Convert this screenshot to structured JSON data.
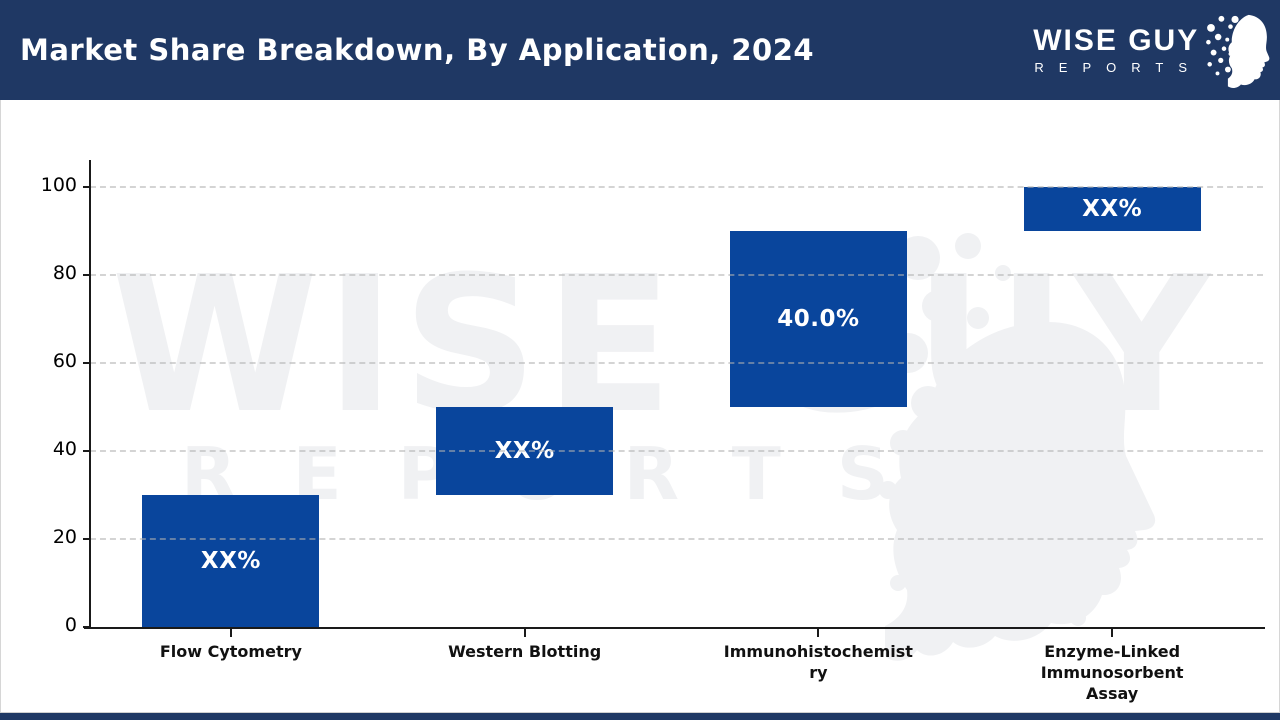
{
  "header": {
    "title": "Market Share Breakdown, By Application, 2024",
    "logo": {
      "name": "WISE GUY",
      "reports": "REPORTS"
    }
  },
  "watermark": {
    "name": "WISE GUY",
    "reports": "REPORTS"
  },
  "chart_data": {
    "type": "bar",
    "variant": "floating-waterfall",
    "title": "Market Share Breakdown, By Application, 2024",
    "xlabel": "",
    "ylabel": "",
    "categories": [
      "Flow Cytometry",
      "Western Blotting",
      "Immunohistochemistry",
      "Enzyme-Linked Immunosorbent Assay"
    ],
    "category_display_lines": [
      [
        "Flow Cytometry"
      ],
      [
        "Western Blotting"
      ],
      [
        "Immunohistochemist",
        "ry"
      ],
      [
        "Enzyme-Linked",
        "Immunosorbent",
        "Assay"
      ]
    ],
    "segments": [
      {
        "category": "Flow Cytometry",
        "start": 0,
        "end": 30,
        "label": "XX%"
      },
      {
        "category": "Western Blotting",
        "start": 30,
        "end": 50,
        "label": "XX%"
      },
      {
        "category": "Immunohistochemistry",
        "start": 50,
        "end": 90,
        "label": "40.0%"
      },
      {
        "category": "Enzyme-Linked Immunosorbent Assay",
        "start": 90,
        "end": 100,
        "label": "XX%"
      }
    ],
    "yticks": [
      0,
      20,
      40,
      60,
      80,
      100
    ],
    "ylim": [
      0,
      100
    ],
    "grid": "horizontal-dashed",
    "legend": "none",
    "bar_color": "#09459c",
    "bar_label_color": "#ffffff"
  },
  "colors": {
    "header_bg": "#1f3864",
    "footer_bg": "#1f3864",
    "bar": "#09459c",
    "axis": "#1a1a1a",
    "grid": "#c9c9c9",
    "watermark": "#f0f1f3",
    "page_border": "#d6d6d6",
    "text_on_dark": "#ffffff",
    "tick_text": "#000000"
  }
}
